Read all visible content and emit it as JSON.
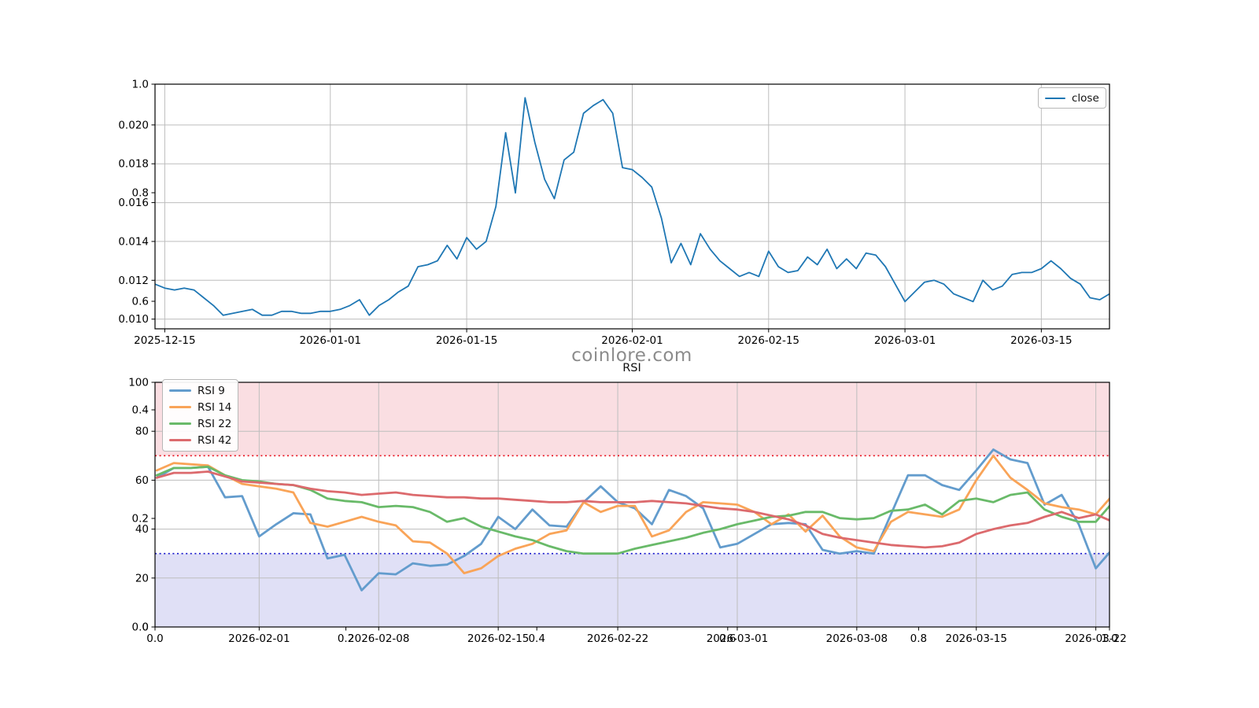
{
  "watermark": "coinlore.com",
  "figure": {
    "background": "#ffffff",
    "grid_color": "#bdbdbd",
    "spine_color": "#000000",
    "tick_color": "#000000"
  },
  "secondary_axis": {
    "tick_labels": [
      "0.0",
      "0.2",
      "0.4",
      "0.6",
      "0.8",
      "1.0"
    ],
    "fractions": [
      0,
      0.2,
      0.4,
      0.6,
      0.8,
      1
    ]
  },
  "chart_data": [
    {
      "id": "price",
      "type": "line",
      "title": "",
      "legend_position": "upper right",
      "start_date": "2025-12-14",
      "xlim_days": [
        0,
        98
      ],
      "ylim": [
        0.0095,
        0.0221
      ],
      "x_ticks": [
        "2025-12-15",
        "2026-01-01",
        "2026-01-15",
        "2026-02-01",
        "2026-02-15",
        "2026-03-01",
        "2026-03-15"
      ],
      "y_tick_values": [
        0.01,
        0.012,
        0.014,
        0.016,
        0.018,
        0.02
      ],
      "y_tick_labels": [
        "0.010",
        "0.012",
        "0.014",
        "0.016",
        "0.018",
        "0.020"
      ],
      "series": [
        {
          "name": "close",
          "color": "#1f77b4",
          "width": 1.8,
          "values": [
            0.0118,
            0.0116,
            0.0115,
            0.0116,
            0.0115,
            0.0111,
            0.0107,
            0.0102,
            0.0103,
            0.0104,
            0.0105,
            0.0102,
            0.0102,
            0.0104,
            0.0104,
            0.0103,
            0.0103,
            0.0104,
            0.0104,
            0.0105,
            0.0107,
            0.011,
            0.0102,
            0.0107,
            0.011,
            0.0114,
            0.0117,
            0.0127,
            0.0128,
            0.013,
            0.0138,
            0.0131,
            0.0142,
            0.0136,
            0.014,
            0.0158,
            0.0196,
            0.0165,
            0.0214,
            0.0191,
            0.0172,
            0.0162,
            0.0182,
            0.0186,
            0.0206,
            0.021,
            0.0213,
            0.0206,
            0.0178,
            0.0177,
            0.0173,
            0.0168,
            0.0152,
            0.0129,
            0.0139,
            0.0128,
            0.0144,
            0.0136,
            0.013,
            0.0126,
            0.0122,
            0.0124,
            0.0122,
            0.0135,
            0.0127,
            0.0124,
            0.0125,
            0.0132,
            0.0128,
            0.0136,
            0.0126,
            0.0131,
            0.0126,
            0.0134,
            0.0133,
            0.0127,
            0.0118,
            0.0109,
            0.0114,
            0.0119,
            0.012,
            0.0118,
            0.0113,
            0.0111,
            0.0109,
            0.012,
            0.0115,
            0.0117,
            0.0123,
            0.0124,
            0.0124,
            0.0126,
            0.013,
            0.0126,
            0.0121,
            0.0118,
            0.0111,
            0.011,
            0.0113
          ]
        }
      ]
    },
    {
      "id": "rsi",
      "type": "line",
      "title": "RSI",
      "legend_position": "upper left",
      "start_date": "2026-01-26",
      "xlim_days": [
        -0.1,
        55.8
      ],
      "ylim": [
        0,
        100
      ],
      "x_ticks": [
        "2026-02-01",
        "2026-02-08",
        "2026-02-15",
        "2026-02-22",
        "2026-03-01",
        "2026-03-08",
        "2026-03-15",
        "2026-03-22"
      ],
      "y_tick_values": [
        0,
        20,
        40,
        60,
        80,
        100
      ],
      "y_tick_labels": [
        "0",
        "20",
        "40",
        "60",
        "80",
        "100"
      ],
      "bands": [
        {
          "from": 70,
          "to": 100,
          "color": "#fadee2",
          "meaning": "overbought zone"
        },
        {
          "from": 0,
          "to": 30,
          "color": "#e0e0f6",
          "meaning": "oversold zone"
        }
      ],
      "hlines": [
        {
          "value": 70,
          "color": "#e8121f",
          "style": "dotted"
        },
        {
          "value": 30,
          "color": "#1414cc",
          "style": "dotted"
        }
      ],
      "series": [
        {
          "name": "RSI 9",
          "color": "#639ccd",
          "width": 2.8,
          "values": [
            61,
            65,
            65,
            65.5,
            53,
            53.5,
            37,
            42,
            46.5,
            46,
            28,
            29.5,
            15,
            22,
            21.5,
            26,
            25,
            25.5,
            29,
            34,
            45,
            40,
            48,
            41.5,
            41,
            51,
            57.5,
            51,
            48.5,
            42,
            56,
            53.5,
            48.5,
            32.5,
            34,
            38,
            42,
            42.5,
            42,
            31.5,
            30,
            31,
            30,
            46,
            62,
            62,
            58,
            56,
            64,
            72.5,
            68.5,
            67,
            50,
            54,
            42,
            24,
            32
          ]
        },
        {
          "name": "RSI 14",
          "color": "#f9a458",
          "width": 2.8,
          "values": [
            64,
            67,
            66.5,
            66,
            62,
            58.5,
            57.5,
            56.5,
            55,
            42.5,
            41,
            43,
            45,
            43,
            41.5,
            35,
            34.5,
            30,
            22,
            24,
            29,
            32,
            34,
            38,
            39.5,
            51,
            47,
            49.5,
            49.5,
            37,
            39.5,
            47,
            51,
            50.5,
            50,
            47,
            42,
            46,
            39,
            45.5,
            37,
            32.5,
            31,
            43,
            47,
            46,
            45,
            48,
            60,
            70,
            61,
            56,
            50.5,
            49,
            48,
            46,
            54
          ]
        },
        {
          "name": "RSI 22",
          "color": "#69ba69",
          "width": 2.8,
          "values": [
            62,
            65,
            65,
            65.5,
            62,
            60,
            59.5,
            58.5,
            58,
            56,
            52.5,
            51.5,
            51,
            49,
            49.5,
            49,
            47,
            43,
            44.5,
            41,
            39,
            37,
            35.5,
            33,
            31,
            30,
            30,
            30,
            32,
            33.5,
            35,
            36.5,
            38.5,
            40,
            42,
            43.5,
            45,
            45.5,
            47,
            47,
            44.5,
            44,
            44.5,
            47.5,
            48,
            50,
            46,
            51.5,
            52.5,
            51,
            54,
            55,
            48,
            45,
            43,
            43,
            51
          ]
        },
        {
          "name": "RSI 42",
          "color": "#dc6a6d",
          "width": 2.8,
          "values": [
            61,
            63,
            63,
            63.5,
            61.5,
            59.5,
            59,
            58.5,
            58,
            56.5,
            55.5,
            55,
            54,
            54.5,
            55,
            54,
            53.5,
            53,
            53,
            52.5,
            52.5,
            52,
            51.5,
            51,
            51,
            51.5,
            51,
            51,
            51,
            51.5,
            51,
            50.5,
            49.5,
            48.5,
            48,
            47,
            45.5,
            44,
            41.5,
            38,
            36.5,
            35.5,
            34.5,
            33.5,
            33,
            32.5,
            33,
            34.5,
            38,
            40,
            41.5,
            42.5,
            45,
            47,
            44.5,
            46,
            43
          ]
        }
      ]
    }
  ]
}
